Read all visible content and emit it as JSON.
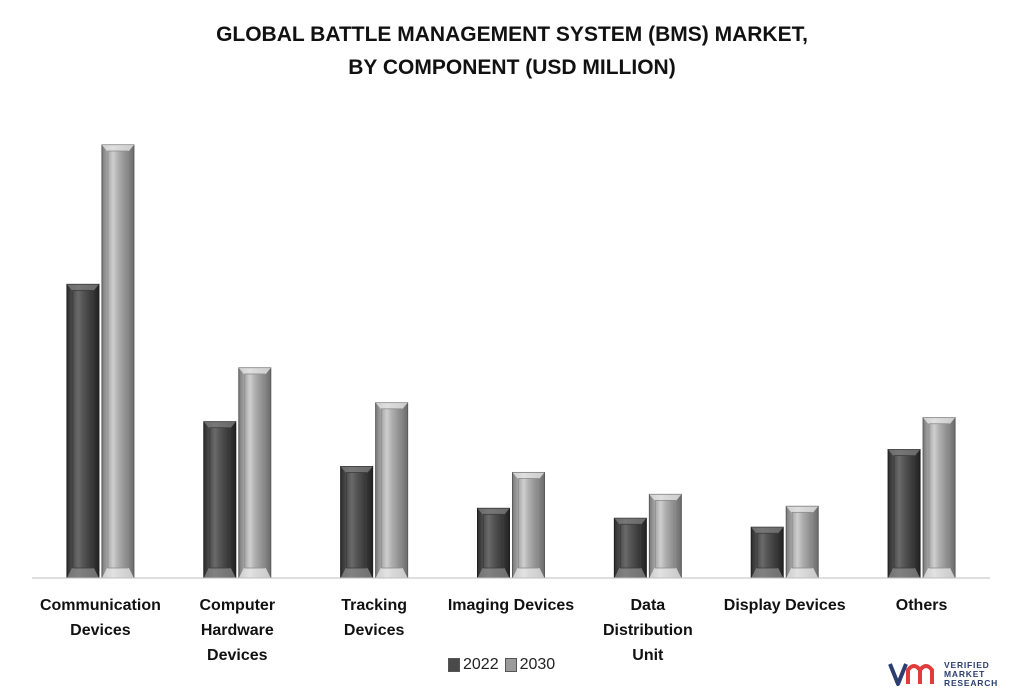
{
  "chart_data": {
    "type": "bar",
    "title_lines": [
      "GLOBAL BATTLE MANAGEMENT SYSTEM (BMS) MARKET,",
      "BY COMPONENT (USD MILLION)"
    ],
    "categories": [
      [
        "Communication",
        "Devices"
      ],
      [
        "Computer",
        "Hardware",
        "Devices"
      ],
      [
        "Tracking",
        "Devices"
      ],
      [
        "Imaging Devices"
      ],
      [
        "Data",
        "Distribution",
        "Unit"
      ],
      [
        "Display Devices"
      ],
      [
        "Others"
      ]
    ],
    "series": [
      {
        "name": "2022",
        "values": [
          295,
          157,
          112,
          70,
          60,
          51,
          129
        ],
        "color": "#4a4a4a"
      },
      {
        "name": "2030",
        "values": [
          435,
          211,
          176,
          106,
          84,
          72,
          161
        ],
        "color": "#9a9a9a"
      }
    ],
    "ylim": [
      0,
      460
    ],
    "grid": false,
    "legend_position": "bottom"
  },
  "legend": {
    "s1": "2022",
    "s2": "2030"
  },
  "logo": {
    "line1": "VERIFIED",
    "line2": "MARKET",
    "line3": "RESEARCH"
  }
}
